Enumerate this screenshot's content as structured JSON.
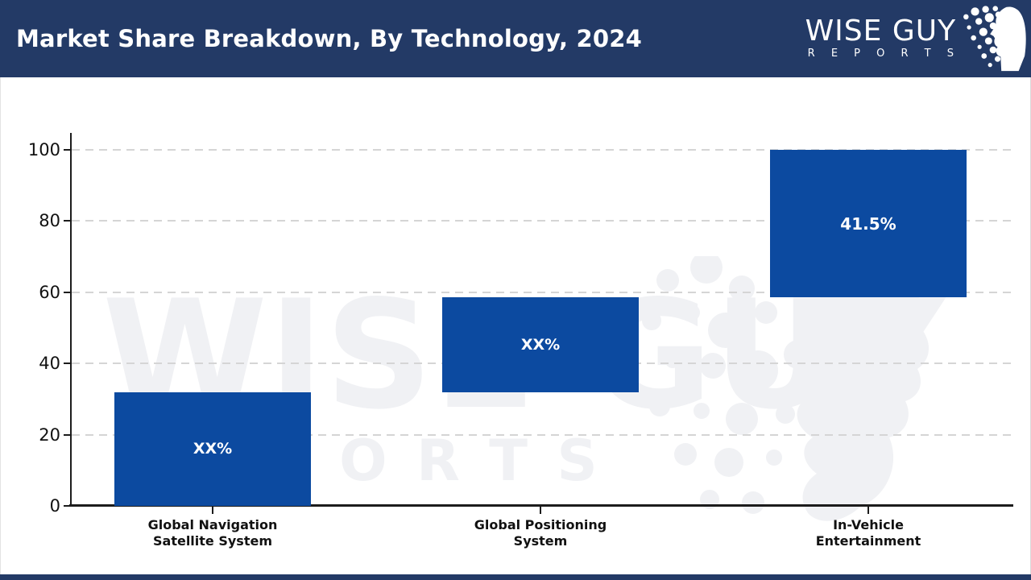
{
  "header": {
    "title": "Market Share Breakdown, By Technology, 2024",
    "logo": {
      "line1": "WISE GUY",
      "line2": "R E P O R T S"
    }
  },
  "watermark": {
    "line1": "WISE GUY",
    "line2": "R E P O R T S"
  },
  "chart_data": {
    "type": "bar",
    "subtype": "floating-segment-bars",
    "title": "Market Share Breakdown, By Technology, 2024",
    "categories": [
      "Global Navigation\nSatellite System",
      "Global Positioning\nSystem",
      "In-Vehicle\nEntertainment"
    ],
    "series": [
      {
        "name": "Global Navigation Satellite System",
        "start": 0,
        "end": 32,
        "label": "XX%"
      },
      {
        "name": "Global Positioning System",
        "start": 32,
        "end": 58.5,
        "label": "XX%"
      },
      {
        "name": "In-Vehicle Entertainment",
        "start": 58.5,
        "end": 100,
        "label": "41.5%"
      }
    ],
    "xlabel": "",
    "ylabel": "",
    "ylim": [
      0,
      100
    ],
    "yticks": [
      0,
      20,
      40,
      60,
      80,
      100
    ],
    "grid": "horizontal-dashed",
    "legend": "none",
    "bar_color": "#0c4aa0"
  },
  "colors": {
    "header_bg": "#233a66",
    "footer_bg": "#233a66",
    "bar": "#0c4aa0",
    "watermark": "#f0f1f4",
    "grid": "#d5d5d5",
    "axis": "#1c1c1c"
  }
}
